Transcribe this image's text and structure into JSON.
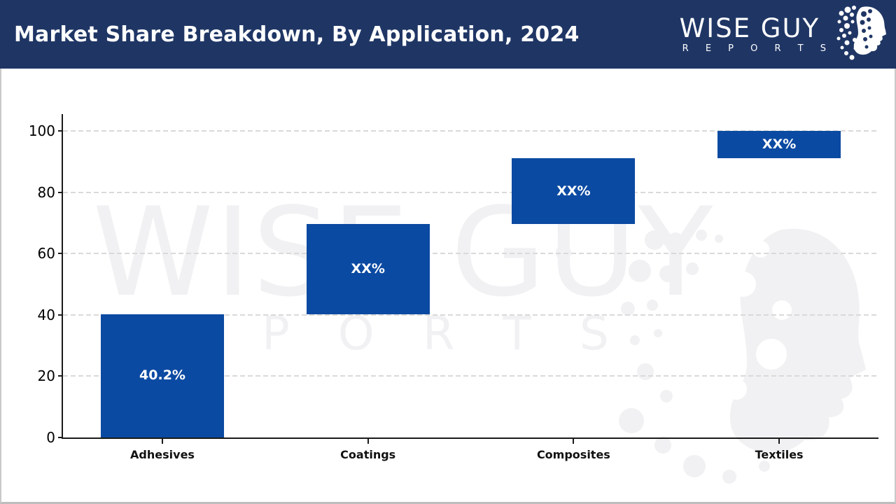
{
  "header": {
    "title": "Market Share Breakdown, By Application, 2024",
    "bg_color": "#1f3665",
    "logo": {
      "line1": "WISE GUY",
      "line2": "R E P O R T S"
    }
  },
  "watermark": {
    "line1": "WISE GUY",
    "line2": "P O R T S"
  },
  "chart_data": {
    "type": "bar",
    "subtype": "waterfall",
    "title": "Market Share Breakdown, By Application, 2024",
    "categories": [
      "Adhesives",
      "Coatings",
      "Composites",
      "Textiles"
    ],
    "segments": [
      [
        0,
        40.2
      ],
      [
        40.2,
        69.6
      ],
      [
        69.6,
        91.1
      ],
      [
        91.1,
        100
      ]
    ],
    "values": [
      40.2,
      29.4,
      21.5,
      8.9
    ],
    "bar_labels": [
      "40.2%",
      "XX%",
      "XX%",
      "XX%"
    ],
    "yticks": [
      0,
      20,
      40,
      60,
      80,
      100
    ],
    "ylim": [
      0,
      104
    ],
    "xlabel": "",
    "ylabel": "",
    "grid": "horizontal-dashed",
    "gridline_color": "#d9d9d9",
    "bar_color": "#0b4aa2",
    "bar_label_color": "#ffffff",
    "axis_color": "#1a1a1a",
    "legend": "none"
  }
}
